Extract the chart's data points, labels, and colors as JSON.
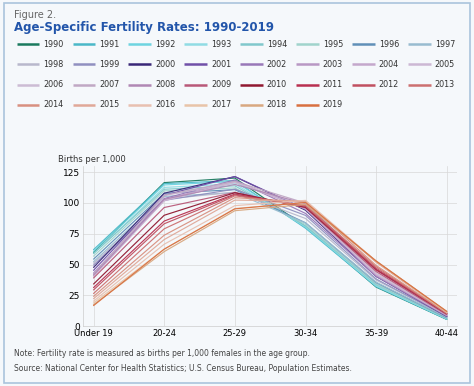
{
  "title_line1": "Figure 2.",
  "title_line2": "Age-Specific Fertility Rates: 1990-2019",
  "ylabel": "Births per 1,000",
  "note1": "Note: Fertility rate is measured as births per 1,000 females in the age group.",
  "note2": "Source: National Center for Health Statistics; U.S. Census Bureau, Population Estimates.",
  "x_labels": [
    "Under 19",
    "20-24",
    "25-29",
    "30-34",
    "35-39",
    "40-44"
  ],
  "ylim": [
    0,
    130
  ],
  "yticks": [
    0,
    25,
    50,
    75,
    100,
    125
  ],
  "years": [
    1990,
    1991,
    1992,
    1993,
    1994,
    1995,
    1996,
    1997,
    1998,
    1999,
    2000,
    2001,
    2002,
    2003,
    2004,
    2005,
    2006,
    2007,
    2008,
    2009,
    2010,
    2011,
    2012,
    2013,
    2014,
    2015,
    2016,
    2017,
    2018,
    2019
  ],
  "data": {
    "1990": [
      59.9,
      116.5,
      120.2,
      80.8,
      31.7,
      5.5
    ],
    "1991": [
      62.1,
      115.7,
      118.2,
      79.5,
      32.0,
      5.5
    ],
    "1992": [
      60.7,
      114.6,
      117.4,
      80.2,
      32.5,
      5.9
    ],
    "1993": [
      59.0,
      112.6,
      115.5,
      80.8,
      32.8,
      5.9
    ],
    "1994": [
      58.9,
      111.1,
      113.9,
      81.5,
      33.7,
      6.4
    ],
    "1995": [
      56.8,
      109.8,
      112.2,
      82.5,
      34.3,
      6.6
    ],
    "1996": [
      54.4,
      107.8,
      110.8,
      83.9,
      35.3,
      6.8
    ],
    "1997": [
      52.3,
      105.3,
      108.3,
      83.8,
      35.7,
      7.1
    ],
    "1998": [
      51.1,
      103.0,
      108.8,
      87.4,
      37.4,
      7.8
    ],
    "1999": [
      49.6,
      102.1,
      111.2,
      89.9,
      38.3,
      7.8
    ],
    "2000": [
      47.7,
      107.9,
      121.4,
      94.1,
      40.4,
      8.0
    ],
    "2001": [
      45.3,
      106.2,
      121.4,
      95.0,
      40.6,
      8.1
    ],
    "2002": [
      43.0,
      103.6,
      118.7,
      91.5,
      40.4,
      8.3
    ],
    "2003": [
      41.6,
      102.6,
      117.6,
      95.1,
      41.2,
      8.7
    ],
    "2004": [
      41.1,
      101.7,
      116.8,
      95.3,
      41.6,
      8.9
    ],
    "2005": [
      40.4,
      102.2,
      116.8,
      95.8,
      42.4,
      9.1
    ],
    "2006": [
      41.9,
      105.9,
      116.7,
      97.7,
      43.0,
      9.4
    ],
    "2007": [
      42.5,
      106.3,
      117.5,
      99.9,
      45.3,
      9.5
    ],
    "2008": [
      41.5,
      103.0,
      115.0,
      99.3,
      46.0,
      9.7
    ],
    "2009": [
      39.1,
      96.3,
      108.5,
      96.1,
      44.3,
      9.3
    ],
    "2010": [
      34.2,
      90.0,
      108.3,
      96.5,
      45.9,
      10.2
    ],
    "2011": [
      31.3,
      85.3,
      107.2,
      97.3,
      45.9,
      10.3
    ],
    "2012": [
      29.4,
      83.1,
      106.5,
      97.3,
      47.1,
      10.4
    ],
    "2013": [
      26.5,
      79.0,
      105.8,
      98.0,
      48.3,
      10.4
    ],
    "2014": [
      24.2,
      73.8,
      104.3,
      100.8,
      49.3,
      10.6
    ],
    "2015": [
      22.3,
      70.3,
      102.3,
      101.5,
      51.8,
      11.0
    ],
    "2016": [
      20.3,
      66.5,
      97.8,
      102.1,
      52.7,
      11.4
    ],
    "2017": [
      18.8,
      62.5,
      95.5,
      100.3,
      52.6,
      11.6
    ],
    "2018": [
      17.4,
      60.5,
      93.7,
      98.8,
      52.9,
      11.8
    ],
    "2019": [
      16.7,
      62.5,
      95.2,
      100.4,
      52.8,
      12.0
    ]
  },
  "colors": {
    "1990": "#1a7a5e",
    "1991": "#4ab8c8",
    "1992": "#6dd4e0",
    "1993": "#90dce4",
    "1994": "#80c8cc",
    "1995": "#a0d4cc",
    "1996": "#6090b8",
    "1997": "#98bcd0",
    "1998": "#b8b8cc",
    "1999": "#9090c0",
    "2000": "#3a2878",
    "2001": "#7050a8",
    "2002": "#9878b8",
    "2003": "#b898c4",
    "2004": "#c4a8cc",
    "2005": "#ccb8d4",
    "2006": "#ccbcd4",
    "2007": "#c0a8c4",
    "2008": "#b088b4",
    "2009": "#b85878",
    "2010": "#901830",
    "2011": "#b83050",
    "2012": "#c05060",
    "2013": "#cc7070",
    "2014": "#d89080",
    "2015": "#e0a898",
    "2016": "#e8c0b0",
    "2017": "#e8c4a8",
    "2018": "#d8a880",
    "2019": "#d87040"
  },
  "background_color": "#f5f8fb",
  "border_color": "#aac4dc",
  "legend_rows": [
    [
      1990,
      1991,
      1992,
      1993,
      1994,
      1995,
      1996,
      1997
    ],
    [
      1998,
      1999,
      2000,
      2001,
      2002,
      2003,
      2004,
      2005
    ],
    [
      2006,
      2007,
      2008,
      2009,
      2010,
      2011,
      2012,
      2013
    ],
    [
      2014,
      2015,
      2016,
      2017,
      2018,
      2019
    ]
  ]
}
